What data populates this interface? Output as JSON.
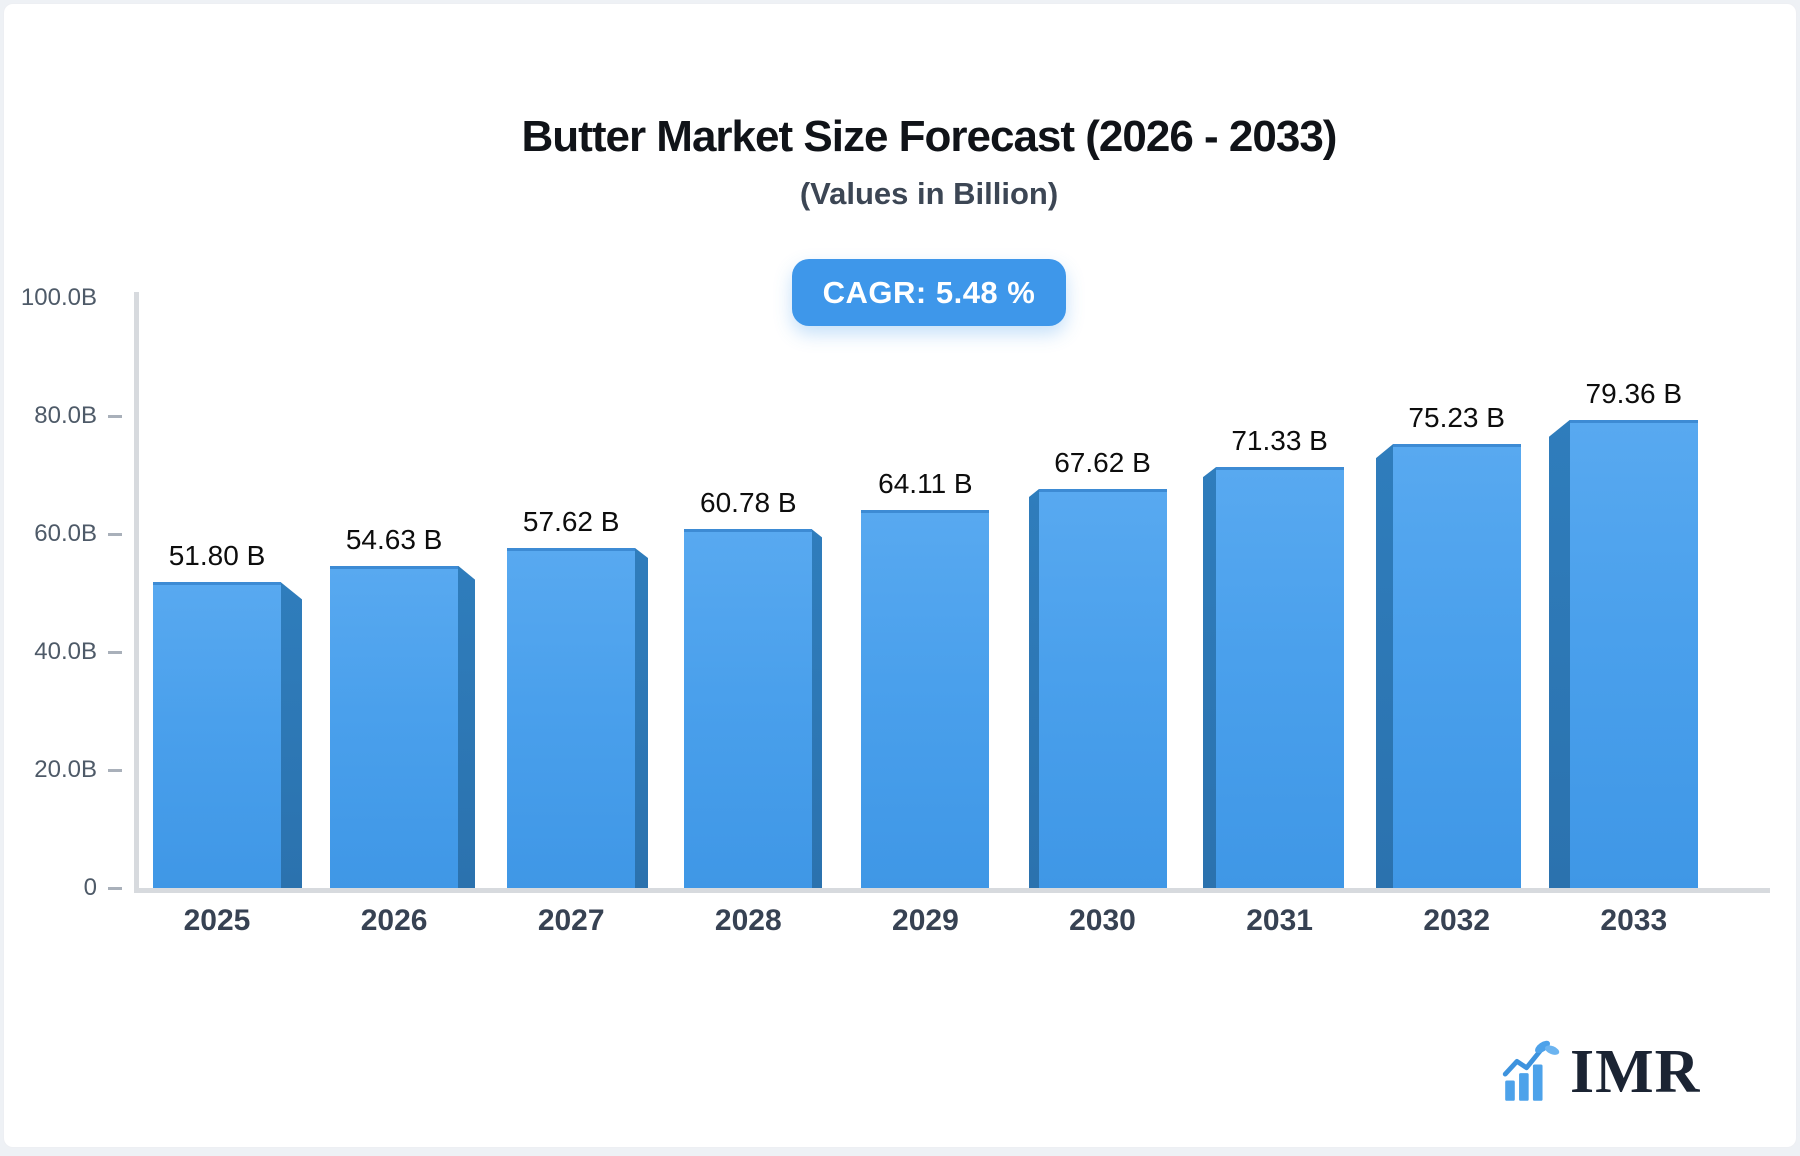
{
  "header": {
    "title": "Butter Market Size Forecast (2026 - 2033)",
    "subtitle": "(Values in Billion)",
    "cagr_label": "CAGR: 5.48 %"
  },
  "logo": {
    "text": "IMR",
    "icon": "bar-chart-growth-leaf-icon"
  },
  "colors": {
    "bar_face_top": "#58a9f0",
    "bar_face_bottom": "#3f97e6",
    "bar_top_edge": "#3d8bd4",
    "bar_side": "#2d77b5",
    "badge_bg": "#3e97ea",
    "badge_text": "#ffffff",
    "axis_line": "#d7dade",
    "tick_dash": "#a9b0ba",
    "ytick_label": "#4e5a68",
    "year_label": "#374253",
    "value_label": "#0d0d0d"
  },
  "chart_data": {
    "type": "bar",
    "title": "Butter Market Size Forecast (2026 - 2033)",
    "subtitle": "(Values in Billion)",
    "annotation": "CAGR: 5.48 %",
    "categories": [
      "2025",
      "2026",
      "2027",
      "2028",
      "2029",
      "2030",
      "2031",
      "2032",
      "2033"
    ],
    "values": [
      51.8,
      54.63,
      57.62,
      60.78,
      64.11,
      67.62,
      71.33,
      75.23,
      79.36
    ],
    "value_labels": [
      "51.80 B",
      "54.63 B",
      "57.62 B",
      "60.78 B",
      "64.11 B",
      "67.62 B",
      "71.33 B",
      "75.23 B",
      "79.36 B"
    ],
    "y_ticks": [
      {
        "label": "100.0B",
        "value": 100,
        "dash": false
      },
      {
        "label": "80.0B",
        "value": 80,
        "dash": true
      },
      {
        "label": "60.0B",
        "value": 60,
        "dash": true
      },
      {
        "label": "40.0B",
        "value": 40,
        "dash": true
      },
      {
        "label": "20.0B",
        "value": 20,
        "dash": true
      },
      {
        "label": "0",
        "value": 0,
        "dash": true
      }
    ],
    "ylim": [
      0,
      100
    ],
    "grid": false,
    "legend": null,
    "bar_style": "3d-center-perspective"
  }
}
